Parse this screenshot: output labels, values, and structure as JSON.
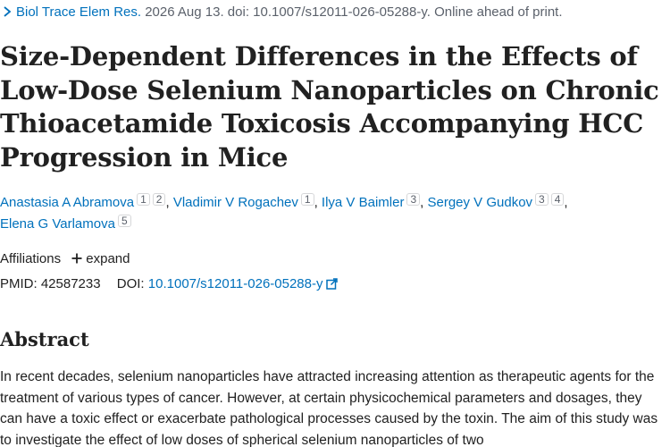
{
  "citation": {
    "journal": "Biol Trace Elem Res.",
    "details": "2026 Aug 13. doi: 10.1007/s12011-026-05288-y. Online ahead of print."
  },
  "article": {
    "title": "Size-Dependent Differences in the Effects of Low-Dose Selenium Nanoparticles on Chronic Thioacetamide Toxicosis Accompanying HCC Progression in Mice"
  },
  "authors": [
    {
      "name": "Anastasia A Abramova",
      "affs": [
        "1",
        "2"
      ]
    },
    {
      "name": "Vladimir V Rogachev",
      "affs": [
        "1"
      ]
    },
    {
      "name": "Ilya V Baimler",
      "affs": [
        "3"
      ]
    },
    {
      "name": "Sergey V Gudkov",
      "affs": [
        "3",
        "4"
      ]
    },
    {
      "name": "Elena G Varlamova",
      "affs": [
        "5"
      ]
    }
  ],
  "affiliations": {
    "label": "Affiliations",
    "expand_label": "expand"
  },
  "identifiers": {
    "pmid_label": "PMID:",
    "pmid": "42587233",
    "doi_label": "DOI:",
    "doi": "10.1007/s12011-026-05288-y"
  },
  "abstract": {
    "heading": "Abstract",
    "text": "In recent decades, selenium nanoparticles have attracted increasing attention as therapeutic agents for the treatment of various types of cancer. However, at certain physicochemical parameters and dosages, they can have a toxic effect or exacerbate pathological processes caused by the toxin. The aim of this study was to investigate the effect of low doses of spherical selenium nanoparticles of two"
  },
  "colors": {
    "link": "#0071bc",
    "text": "#212121",
    "muted": "#5b616b"
  },
  "icons": {
    "citation_toggle": "chevron-right-icon",
    "expand": "plus-icon",
    "external_link": "external-link-icon"
  }
}
